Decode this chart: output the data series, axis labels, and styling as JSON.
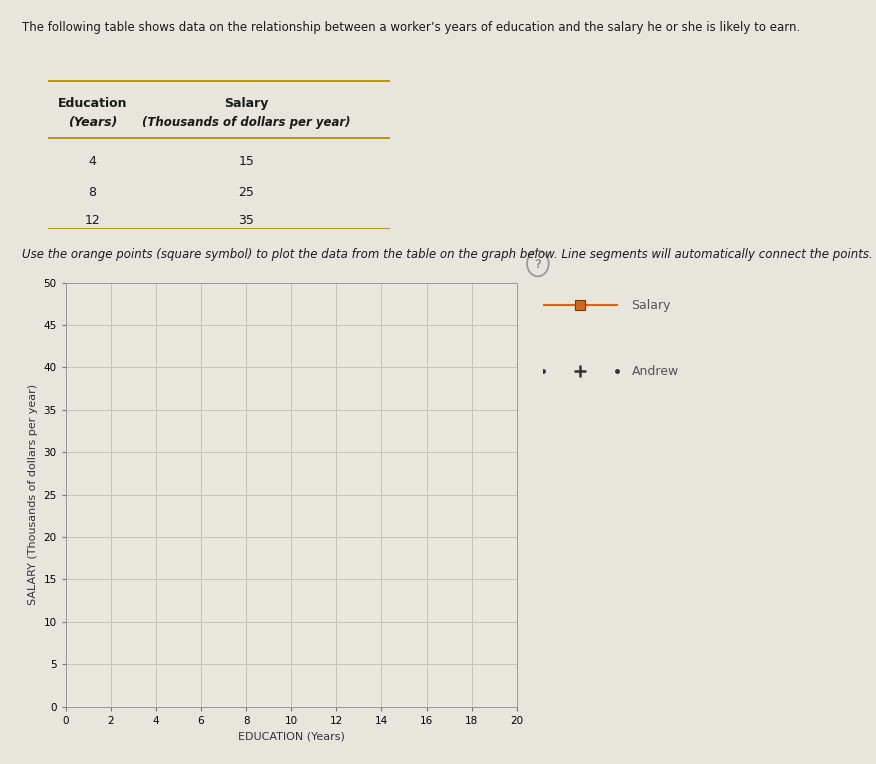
{
  "title_text": "The following table shows data on the relationship between a worker’s years of education and the salary he or she is likely to earn.",
  "table_data": [
    [
      4,
      15
    ],
    [
      8,
      25
    ],
    [
      12,
      35
    ]
  ],
  "instruction_text": "Use the orange points (square symbol) to plot the data from the table on the graph below. Line segments will automatically connect the points.",
  "xlabel": "EDUCATION (Years)",
  "ylabel": "SALARY (Thousands of dollars per year)",
  "xlim": [
    0,
    20
  ],
  "ylim": [
    0,
    50
  ],
  "xticks": [
    0,
    2,
    4,
    6,
    8,
    10,
    12,
    14,
    16,
    18,
    20
  ],
  "yticks": [
    0,
    5,
    10,
    15,
    20,
    25,
    30,
    35,
    40,
    45,
    50
  ],
  "orange_color": "#D2691E",
  "dark_color": "#555555",
  "bg_color": "#E8E5DC",
  "plot_bg_color": "#EAE7DE",
  "grid_color": "#C5C2BA",
  "table_line_color": "#B8960C",
  "legend_salary_label": "Salary",
  "legend_andrew_label": "Andrew",
  "title_fontsize": 8.5,
  "instruction_fontsize": 8.5,
  "axis_label_fontsize": 8,
  "tick_fontsize": 7.5,
  "legend_fontsize": 9
}
